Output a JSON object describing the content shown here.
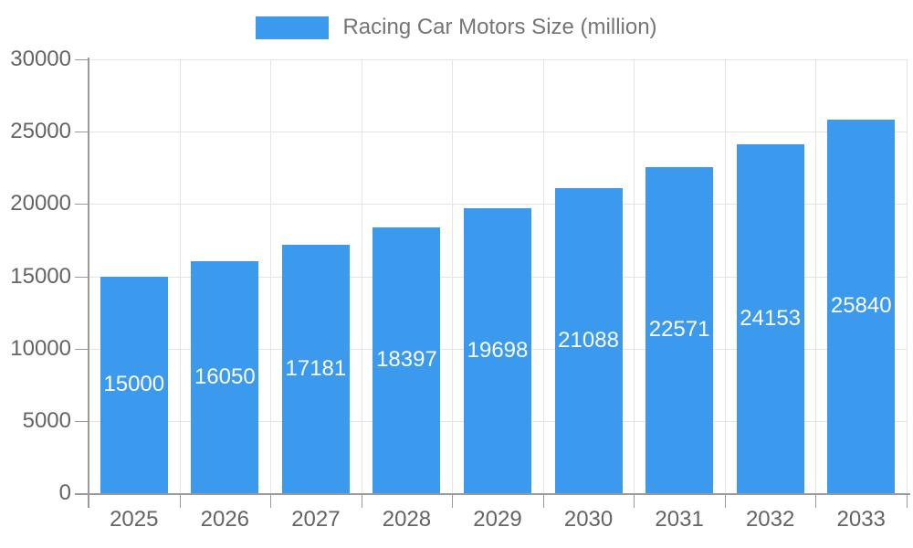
{
  "chart_data": {
    "type": "bar",
    "title": "Racing Car Motors Size (million)",
    "categories": [
      "2025",
      "2026",
      "2027",
      "2028",
      "2029",
      "2030",
      "2031",
      "2032",
      "2033"
    ],
    "series": [
      {
        "name": "Racing Car Motors Size (million)",
        "values": [
          15000,
          16050,
          17181,
          18397,
          19698,
          21088,
          22571,
          24153,
          25840
        ]
      }
    ],
    "xlabel": "",
    "ylabel": "",
    "ylim": [
      0,
      30000
    ],
    "ytick_interval": 5000,
    "yticks": [
      0,
      5000,
      10000,
      15000,
      20000,
      25000,
      30000
    ],
    "grid": true,
    "legend_position": "top-center",
    "value_label_position": "inside-middle"
  },
  "colors": {
    "bar": "#3B99EE",
    "value_label": "#ffffff",
    "axis_line": "#9a9a9a",
    "grid_line": "#e4e4e4",
    "tick_label": "#646464",
    "legend_text": "#757575",
    "background": "#ffffff"
  }
}
